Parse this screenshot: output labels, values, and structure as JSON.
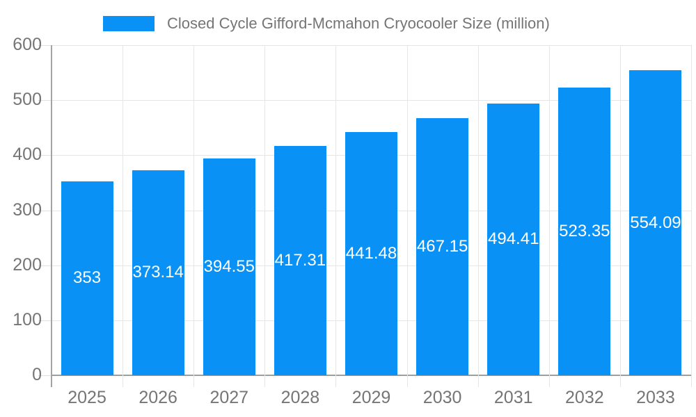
{
  "legend": {
    "label": "Closed Cycle Gifford-Mcmahon Cryocooler Size (million)"
  },
  "chart_data": {
    "type": "bar",
    "title": "",
    "xlabel": "",
    "ylabel": "",
    "categories": [
      "2025",
      "2026",
      "2027",
      "2028",
      "2029",
      "2030",
      "2031",
      "2032",
      "2033"
    ],
    "series": [
      {
        "name": "Closed Cycle Gifford-Mcmahon Cryocooler Size (million)",
        "values": [
          353,
          373.14,
          394.55,
          417.31,
          441.48,
          467.15,
          494.41,
          523.35,
          554.09
        ]
      }
    ],
    "value_labels": [
      "353",
      "373.14",
      "394.55",
      "417.31",
      "441.48",
      "467.15",
      "494.41",
      "523.35",
      "554.09"
    ],
    "ylim": [
      0,
      600
    ],
    "ytick_step": 100,
    "ytick_labels": [
      "0",
      "100",
      "200",
      "300",
      "400",
      "500",
      "600"
    ],
    "grid": true,
    "legend_position": "top",
    "bar_color": "#0991f5",
    "grid_color": "#e6e6e6",
    "axis_color": "#9e9e9e",
    "label_color": "#757575",
    "value_label_color": "#ffffff"
  }
}
